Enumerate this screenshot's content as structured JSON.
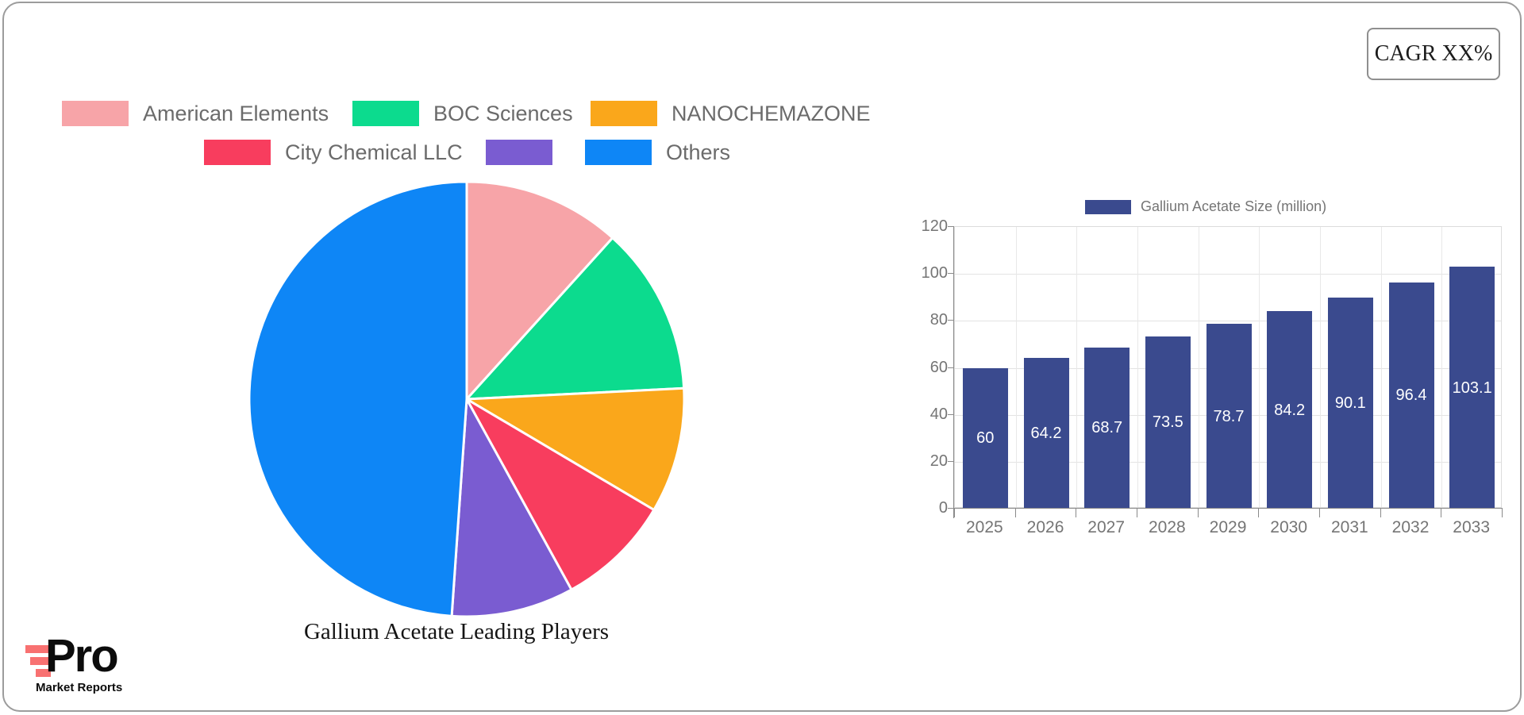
{
  "cagr_badge": {
    "label": "CAGR XX%"
  },
  "colors": {
    "page_border": "#9C9C9C",
    "legend_text": "#6B6B6B",
    "axis_text": "#757575",
    "grid_line": "#E3E3E3",
    "axis_line": "#8A8A8A",
    "plot_border": "#DCDCDC",
    "bar_value_text": "#FFFFFF",
    "logo_accent": "#F87171",
    "logo_text": "#0C0C0C"
  },
  "pie_legend": {
    "row1": [
      {
        "label": "American Elements",
        "color": "#F7A4A8"
      },
      {
        "label": "BOC Sciences",
        "color": "#0CDB8E"
      },
      {
        "label": "NANOCHEMAZONE",
        "color": "#FAA71B"
      }
    ],
    "row2": [
      {
        "label": "City Chemical LLC",
        "color": "#F83D5E"
      },
      {
        "label": "",
        "color": "#7A5CD1"
      },
      {
        "label": "Others",
        "color": "#0E86F6"
      }
    ]
  },
  "chart_data": [
    {
      "type": "pie",
      "title": "Gallium Acetate Leading Players",
      "labels": [
        "American Elements",
        "BOC Sciences",
        "NANOCHEMAZONE",
        "City Chemical LLC",
        "",
        "Others"
      ],
      "values": [
        11.7,
        12.5,
        9.3,
        8.5,
        9.1,
        48.9
      ],
      "colors": [
        "#F7A4A8",
        "#0CDB8E",
        "#FAA71B",
        "#F83D5E",
        "#7A5CD1",
        "#0E86F6"
      ],
      "start_angle": "top",
      "direction": "clockwise",
      "slice_border_color": "#FFFFFF"
    },
    {
      "type": "bar",
      "legend": "Gallium Acetate Size (million)",
      "legend_position": "top",
      "categories": [
        "2025",
        "2026",
        "2027",
        "2028",
        "2029",
        "2030",
        "2031",
        "2032",
        "2033"
      ],
      "values": [
        60,
        64.2,
        68.7,
        73.5,
        78.7,
        84.2,
        90.1,
        96.4,
        103.1
      ],
      "value_labels": [
        "60",
        "64.2",
        "68.7",
        "73.5",
        "78.7",
        "84.2",
        "90.1",
        "96.4",
        "103.1"
      ],
      "ylim": [
        0,
        120
      ],
      "yticks": [
        0,
        20,
        40,
        60,
        80,
        100,
        120
      ],
      "grid": true,
      "bar_color": "#3A4A8E"
    }
  ],
  "logo": {
    "name": "Pro",
    "subtitle": "Market Reports"
  }
}
